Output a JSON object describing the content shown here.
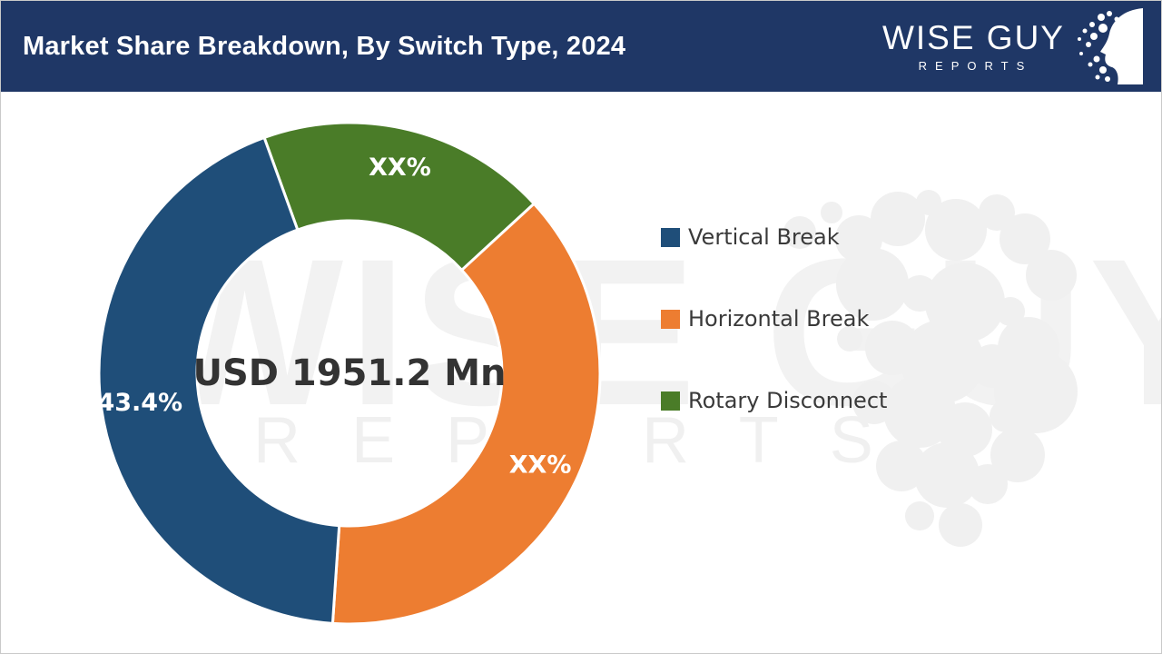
{
  "header": {
    "title": "Market Share Breakdown, By Switch Type, 2024",
    "bg_color": "#1f3766",
    "logo": {
      "line1": "WISE GUY",
      "line2": "REPORTS"
    }
  },
  "watermark": {
    "line1": "WISE GUY",
    "line2": "REPORTS"
  },
  "legend": {
    "position": "right",
    "items": [
      {
        "label": "Vertical Break",
        "color": "#1F4E79"
      },
      {
        "label": "Horizontal Break",
        "color": "#ED7D31"
      },
      {
        "label": "Rotary Disconnect",
        "color": "#4A7C28"
      }
    ]
  },
  "chart_data": {
    "type": "pie",
    "subtype": "donut",
    "title": "Market Share Breakdown, By Switch Type, 2024",
    "center_label": "USD 1951.2 Mn",
    "segments": [
      {
        "name": "Vertical Break",
        "color": "#1F4E79",
        "display_label": "43.4%",
        "share_pct_est": 43.4
      },
      {
        "name": "Horizontal Break",
        "color": "#ED7D31",
        "display_label": "XX%",
        "share_pct_est": 37.9
      },
      {
        "name": "Rotary Disconnect",
        "color": "#4A7C28",
        "display_label": "XX%",
        "share_pct_est": 18.7
      }
    ],
    "start_angle_deg_clockwise_from_top": -19.9,
    "draw_order": [
      2,
      1,
      0
    ],
    "legend_position": "right",
    "grid": false
  }
}
